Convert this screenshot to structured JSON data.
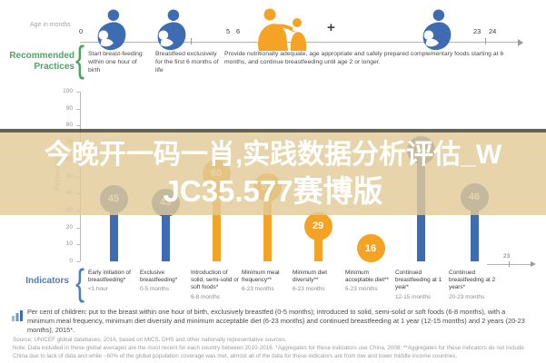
{
  "banner": {
    "line1": "今晚开一码一肖,实践数据分析评估_W",
    "line2": "JC35.577赛博版"
  },
  "timeline": {
    "age_label": "Age in months",
    "ticks": {
      "t0": "0",
      "t5": "5",
      "t6": "6",
      "t23": "23",
      "t24": "24"
    },
    "plus": "+"
  },
  "recommended": {
    "title_line1": "Recommended",
    "title_line2": "Practices",
    "brace": "{",
    "items": [
      "Start breast-feeding within one hour of birth",
      "Breastfeed exclusively for the first 6 months of life",
      "Provide nutritionally adequate, age appropriate and safely prepared complementary foods starting at 6 months, and continue breastfeeding until age 2 or longer."
    ]
  },
  "chart_data": {
    "type": "bar",
    "subtype": "lollipop",
    "title": "",
    "ylabel": "Percentage",
    "ylim": [
      0,
      100
    ],
    "yticks": [
      0,
      10,
      20,
      30,
      40,
      50,
      60,
      70,
      80,
      90,
      100
    ],
    "grid": false,
    "x_axis_end_label": "23",
    "categories": [
      "Early initiation of breastfeeding*",
      "Exclusive breastfeeding*",
      "Introduction of solid, semi-solid or soft foods*",
      "Minimum meal frequency**",
      "Minimum diet diversity**",
      "Minimum acceptable diet**",
      "Continued breastfeeding at 1 year*",
      "Continued breastfeeding at 2 years*"
    ],
    "age_ranges": [
      "<1 hour",
      "0-5 months",
      "6-8 months",
      "6-23 months",
      "6-23 months",
      "6-23 months",
      "12-15 months",
      "20-23 months"
    ],
    "values": [
      45,
      43,
      60,
      52,
      29,
      16,
      74,
      46
    ],
    "bar_colors": [
      "#3e6cb3",
      "#3e6cb3",
      "#f4a324",
      "#f4a324",
      "#f4a324",
      "#f4a324",
      "#3e6cb3",
      "#3e6cb3"
    ]
  },
  "indicators": {
    "title": "Indicators",
    "brace": "{"
  },
  "footnote": "Per cent of children: put to the breast within one hour of birth, exclusively breastfed (0-5 months); introduced to solid, semi-solid or soft foods (6-8 months), with a minimum meal frequency, minimum diet diversity and minimum acceptable diet (6-23 months) and continued breastfeeding at 1 year (12-15 months) and 2 years (20-23 months), 2015*.",
  "source_line": "Source: UNICEF global databases, 2016, based on MICS, DHS and other nationally representative sources.",
  "note_line": "Note: Data included in these global averages are the most recent for each country between 2010-2016. *Aggregates for these indicators use China, 2008; **Aggregates for these indicators do not include China due to lack of data and while ~60% of the global population coverage was met, almost all of the data for these indicators are from low and lower middle income countries.",
  "colors": {
    "blue": "#3e6cb3",
    "orange": "#f4a324",
    "green": "#4aa562",
    "indicator_blue": "#4c7dc0",
    "banner_beige": "#e2ca99"
  }
}
